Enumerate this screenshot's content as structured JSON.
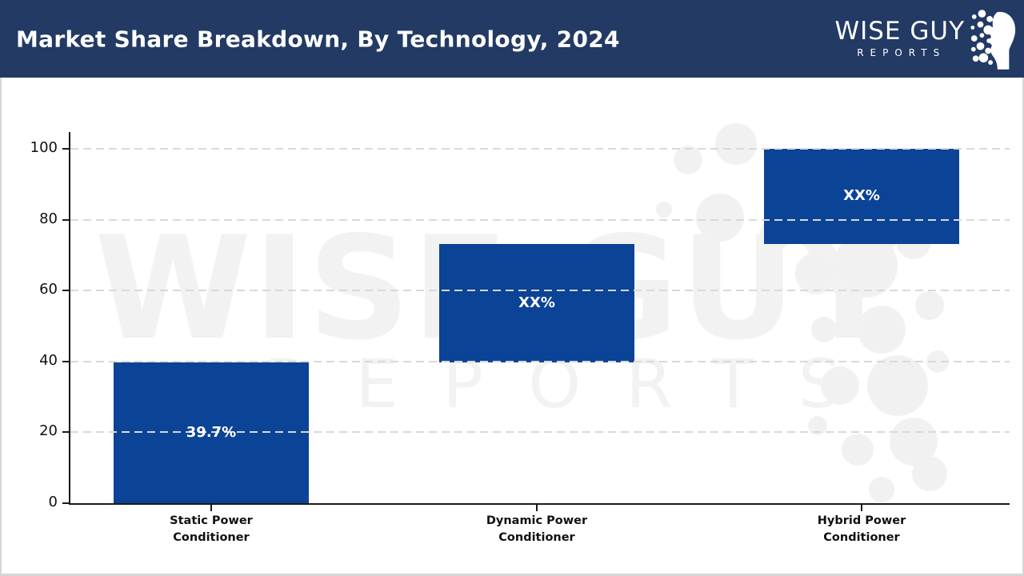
{
  "header": {
    "title": "Market Share Breakdown, By Technology, 2024",
    "logo": {
      "name": "WISE GUY",
      "sub": "REPORTS"
    }
  },
  "watermark": {
    "line1": "WISE GUY",
    "line2": "REPORTS"
  },
  "chart_data": {
    "type": "bar",
    "subtype": "waterfall-segments",
    "title": "Market Share Breakdown, By Technology, 2024",
    "xlabel": "",
    "ylabel": "",
    "ylim": [
      0,
      100
    ],
    "yticks": [
      0,
      20,
      40,
      60,
      80,
      100
    ],
    "grid": "horizontal-dashed",
    "legend": "none",
    "categories": [
      "Static Power Conditioner",
      "Dynamic Power Conditioner",
      "Hybrid Power Conditioner"
    ],
    "category_label_lines": [
      [
        "Static Power",
        "Conditioner"
      ],
      [
        "Dynamic Power",
        "Conditioner"
      ],
      [
        "Hybrid Power",
        "Conditioner"
      ]
    ],
    "bars": [
      {
        "category": "Static Power Conditioner",
        "from": 0,
        "to": 39.7,
        "value_label": "39.7%"
      },
      {
        "category": "Dynamic Power Conditioner",
        "from": 39.7,
        "to": 73.2,
        "value_label": "XX%"
      },
      {
        "category": "Hybrid Power Conditioner",
        "from": 73.2,
        "to": 100,
        "value_label": "XX%"
      }
    ],
    "colors": {
      "bar": "#0b4397",
      "bar_label": "#ffffff",
      "axis": "#1a1a1a",
      "gridline": "#d9d9d9",
      "tick_label": "#111111",
      "header_bg": "#223a64",
      "watermark": "#f2f2f2",
      "frame_border": "#d6d6d6"
    }
  }
}
